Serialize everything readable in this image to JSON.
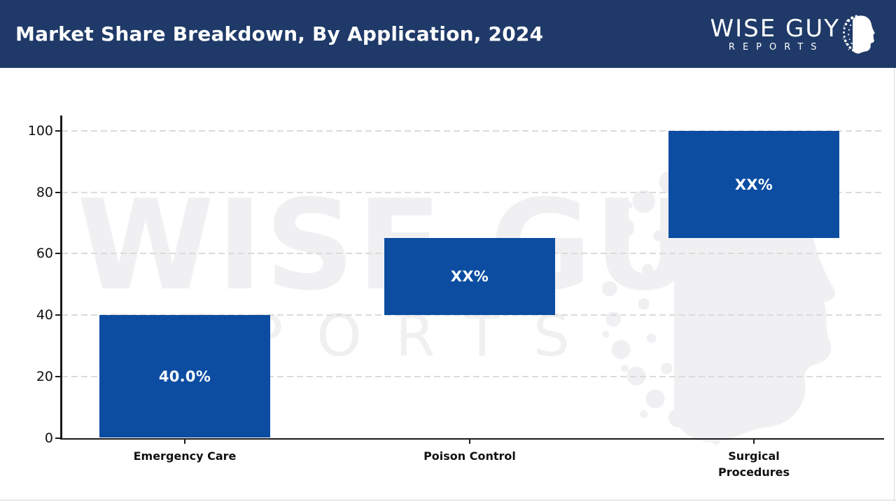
{
  "header": {
    "title": "Market Share Breakdown, By Application, 2024",
    "background_color": "#1f3a68",
    "logo": {
      "line1": "WISE GUY",
      "line2": "REPORTS"
    }
  },
  "watermark": {
    "line1": "WISE GUY",
    "line2": "REPORTS"
  },
  "chart_data": {
    "type": "bar",
    "variant": "waterfall",
    "title": "Market Share Breakdown, By Application, 2024",
    "categories": [
      "Emergency Care",
      "Poison Control",
      "Surgical Procedures"
    ],
    "bars": [
      {
        "category": "Emergency Care",
        "start": 0,
        "end": 40,
        "label": "40.0%"
      },
      {
        "category": "Poison Control",
        "start": 40,
        "end": 65,
        "label": "XX%"
      },
      {
        "category": "Surgical Procedures",
        "start": 65,
        "end": 100,
        "label": "XX%"
      }
    ],
    "yticks": [
      0,
      20,
      40,
      60,
      80,
      100
    ],
    "ylim": [
      0,
      105
    ],
    "xlabel": "",
    "ylabel": "",
    "grid": "horizontal-dashed",
    "legend": "none",
    "colors": {
      "bar": "#0c4da2",
      "bar_label": "#ffffff",
      "grid": "#dbdbdb",
      "axis": "#1a1a1a",
      "tick_label": "#111111",
      "watermark": "#f0f0f2"
    }
  }
}
